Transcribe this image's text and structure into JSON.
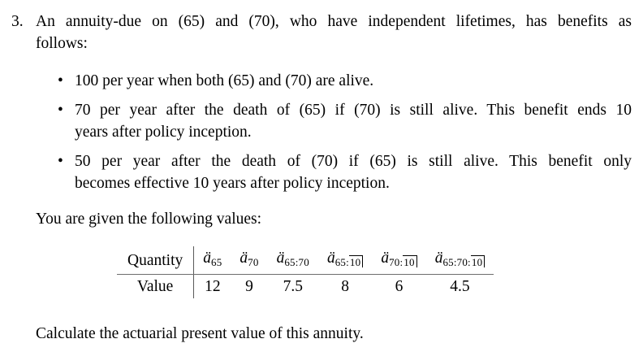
{
  "problem": {
    "number": "3.",
    "intro": {
      "line1": "An annuity-due on (65) and (70), who have independent lifetimes, has benefits as",
      "line2": "follows:"
    },
    "bullets": [
      {
        "line1": "100 per year when both (65) and (70) are alive."
      },
      {
        "line1": "70 per year after the death of (65) if (70) is still alive. This benefit ends 10",
        "line2": "years after policy inception."
      },
      {
        "line1": "50 per year after the death of (70) if (65) is still alive. This benefit only",
        "line2": "becomes effective 10 years after policy inception."
      }
    ],
    "given_intro": "You are given the following values:",
    "question": "Calculate the actuarial present value of this annuity."
  },
  "table": {
    "row1_label": "Quantity",
    "row2_label": "Value",
    "columns": [
      {
        "base": "ä",
        "sub": "65",
        "value": "12"
      },
      {
        "base": "ä",
        "sub": "70",
        "value": "9"
      },
      {
        "base": "ä",
        "sub": "65:70",
        "value": "7.5"
      },
      {
        "base": "ä",
        "sub": "65:",
        "angle": "10",
        "value": "8"
      },
      {
        "base": "ä",
        "sub": "70:",
        "angle": "10",
        "value": "6"
      },
      {
        "base": "ä",
        "sub": "65:70:",
        "angle": "10",
        "value": "4.5"
      }
    ]
  }
}
